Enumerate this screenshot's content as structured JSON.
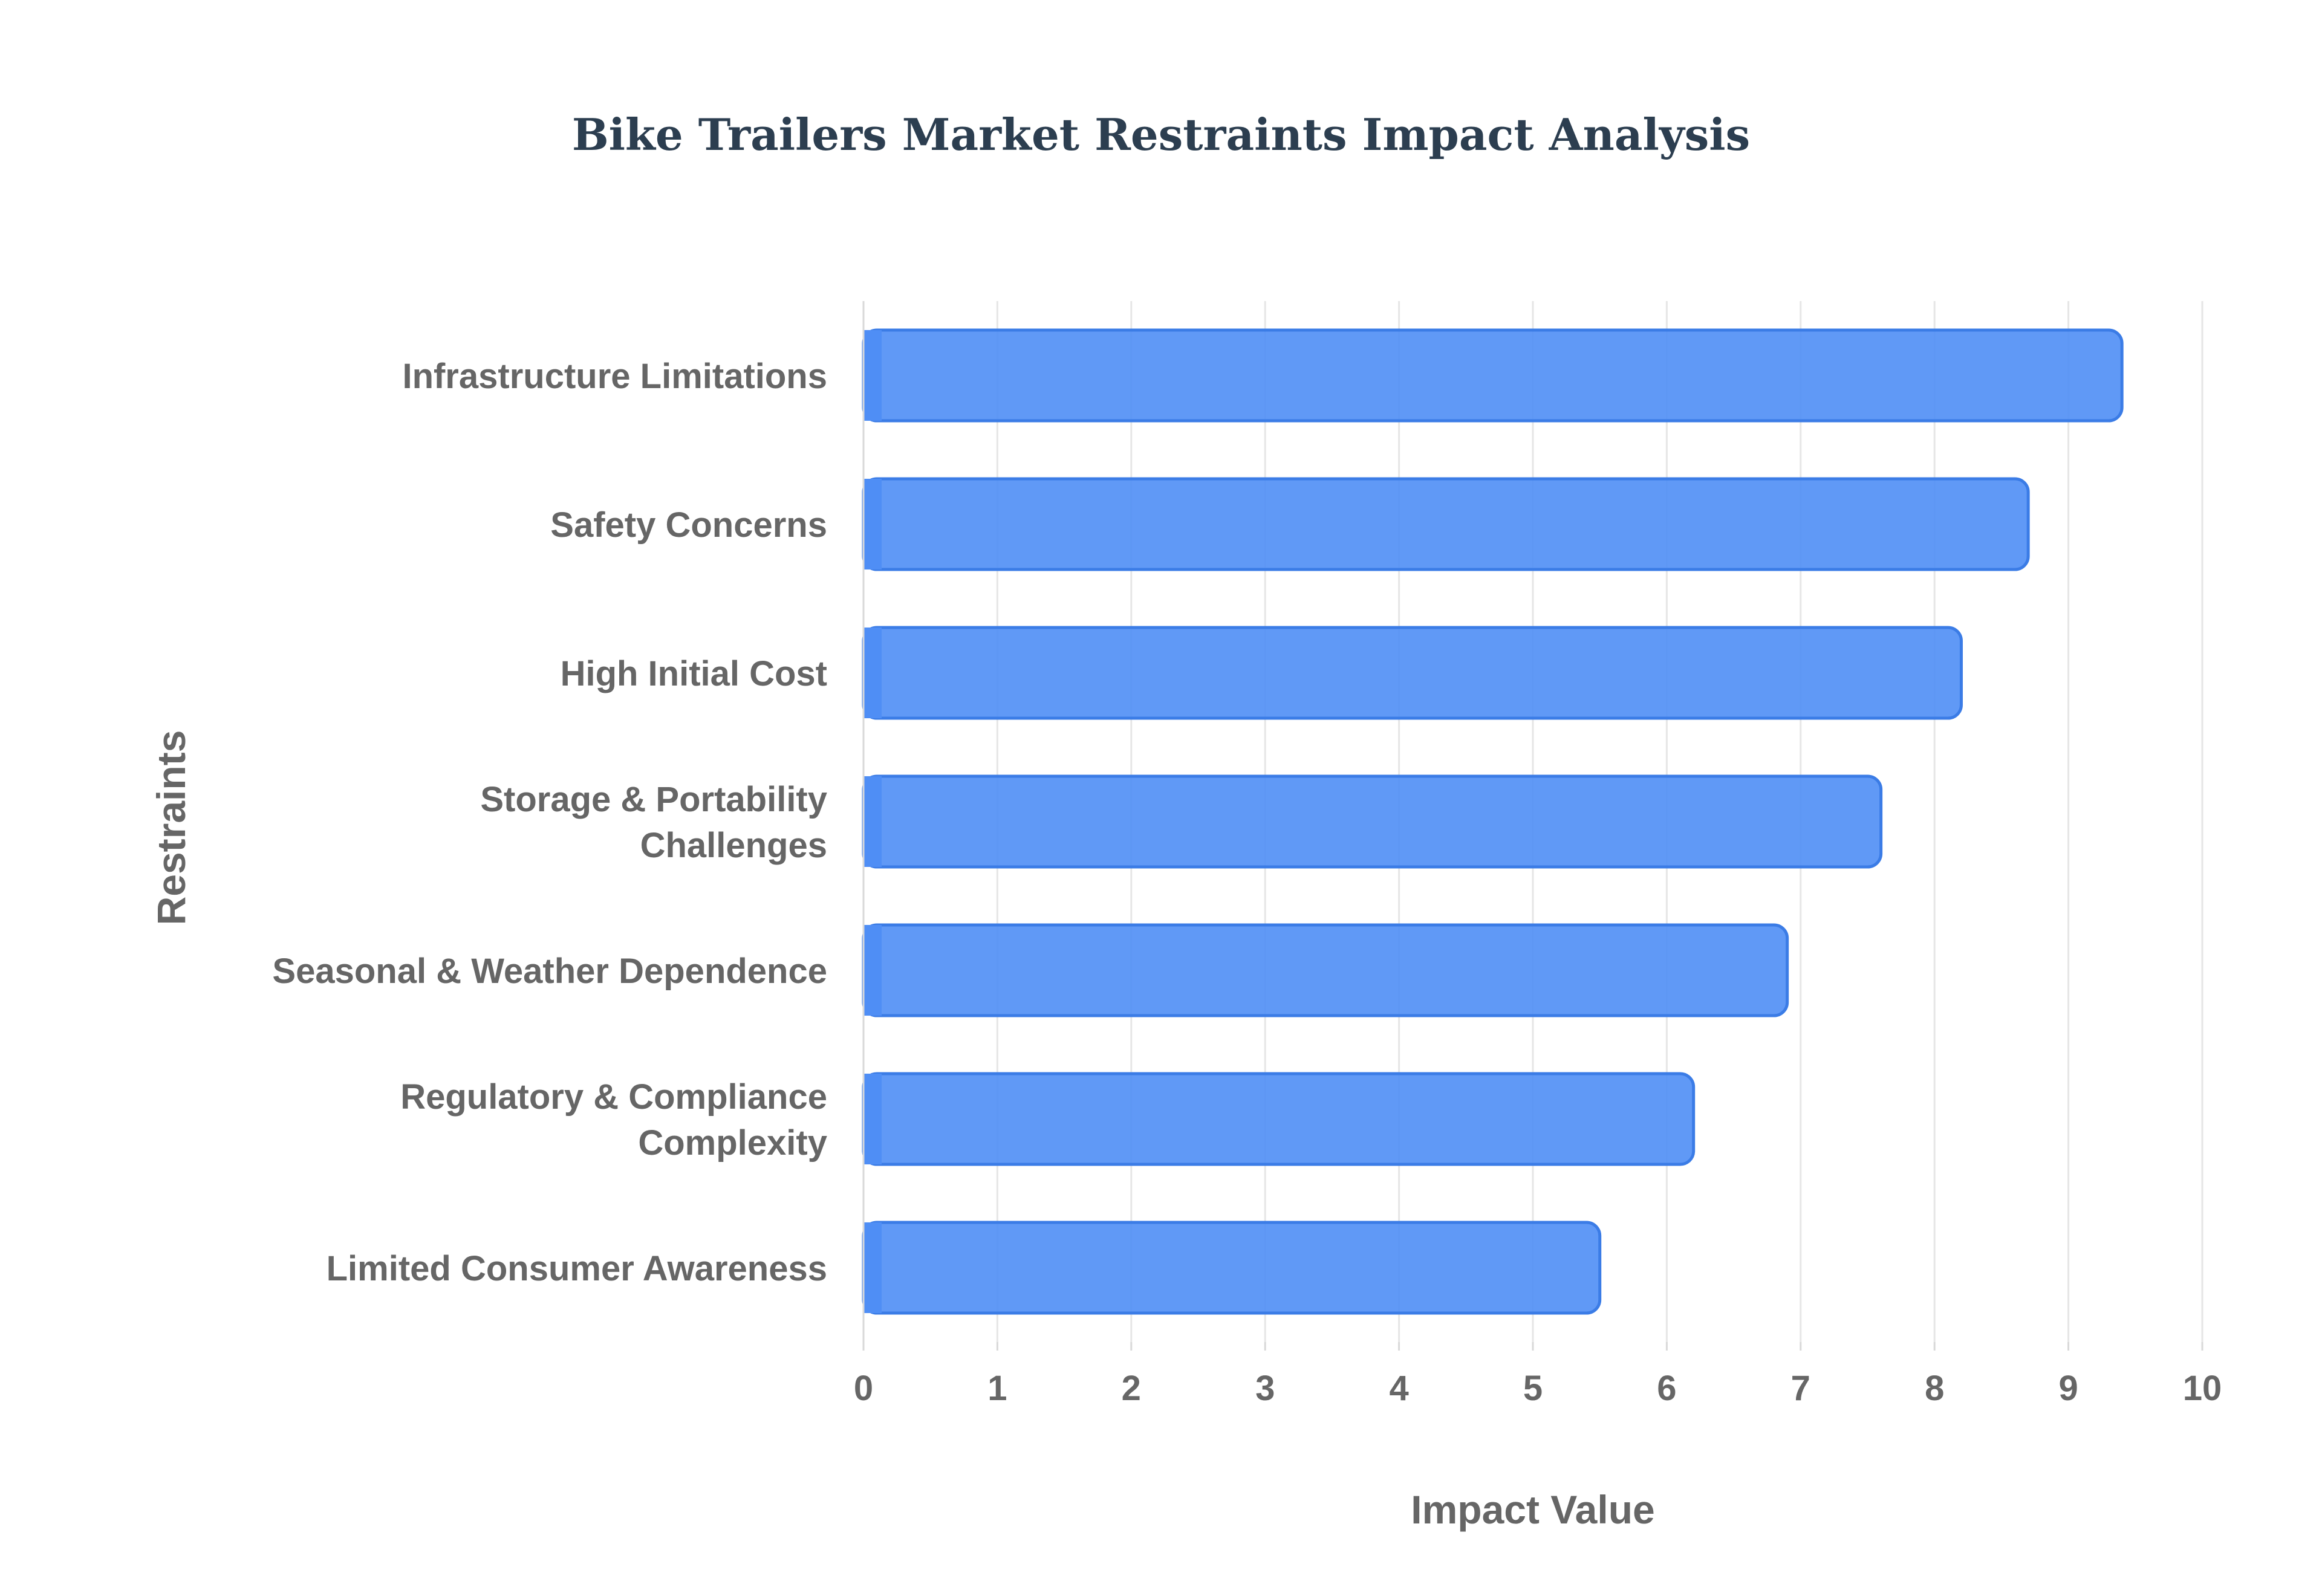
{
  "chart_data": {
    "type": "bar",
    "orientation": "horizontal",
    "title": "Bike Trailers Market Restraints Impact Analysis",
    "xlabel": "Impact Value",
    "ylabel": "Restraints",
    "xlim": [
      0,
      10
    ],
    "xticks": [
      "0",
      "1",
      "2",
      "3",
      "4",
      "5",
      "6",
      "7",
      "8",
      "9",
      "10"
    ],
    "grid": true,
    "categories": [
      [
        "Infrastructure Limitations"
      ],
      [
        "Safety Concerns"
      ],
      [
        "High Initial Cost"
      ],
      [
        "Storage & Portability",
        "Challenges"
      ],
      [
        "Seasonal & Weather Dependence"
      ],
      [
        "Regulatory & Compliance",
        "Complexity"
      ],
      [
        "Limited Consumer Awareness"
      ]
    ],
    "values": [
      9.4,
      8.7,
      8.2,
      7.6,
      6.9,
      6.2,
      5.5
    ],
    "colors": {
      "bar_fill": "#4f8ef5",
      "bar_stroke": "#3b7ce6",
      "grid": "#e6e6e6",
      "text": "#666666",
      "title": "#2c3e50"
    }
  }
}
